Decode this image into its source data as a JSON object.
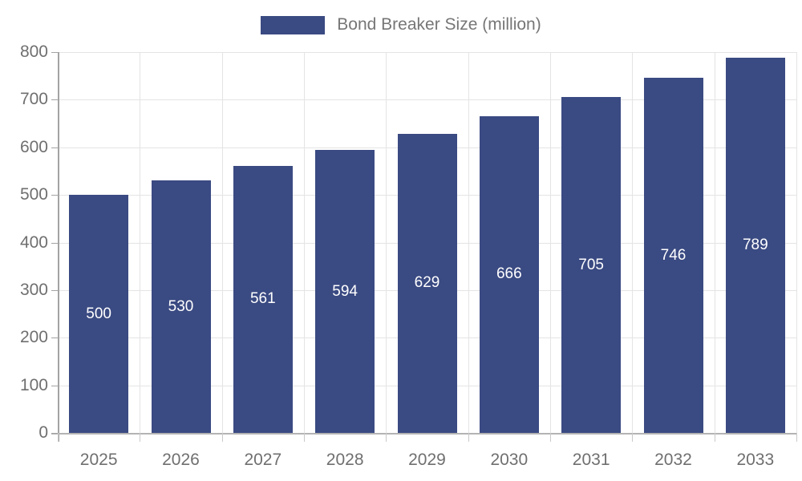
{
  "legend": {
    "label": "Bond Breaker Size (million)",
    "swatch_color": "#3A4A82"
  },
  "chart_data": {
    "type": "bar",
    "title": "",
    "xlabel": "",
    "ylabel": "",
    "categories": [
      "2025",
      "2026",
      "2027",
      "2028",
      "2029",
      "2030",
      "2031",
      "2032",
      "2033"
    ],
    "series": [
      {
        "name": "Bond Breaker Size (million)",
        "values": [
          500,
          530,
          561,
          594,
          629,
          666,
          705,
          746,
          789
        ]
      }
    ],
    "value_labels": [
      "500",
      "530",
      "561",
      "594",
      "629",
      "666",
      "705",
      "746",
      "789"
    ],
    "ylim": [
      0,
      800
    ],
    "ytick_interval": 100,
    "ytick_labels": [
      "0",
      "100",
      "200",
      "300",
      "400",
      "500",
      "600",
      "700",
      "800"
    ],
    "grid": true,
    "legend_position": "top",
    "bar_color": "#3A4A82",
    "value_label_color": "#ffffff",
    "axis_label_color": "#6f6f6f",
    "gridline_color": "#e4e4e4"
  }
}
